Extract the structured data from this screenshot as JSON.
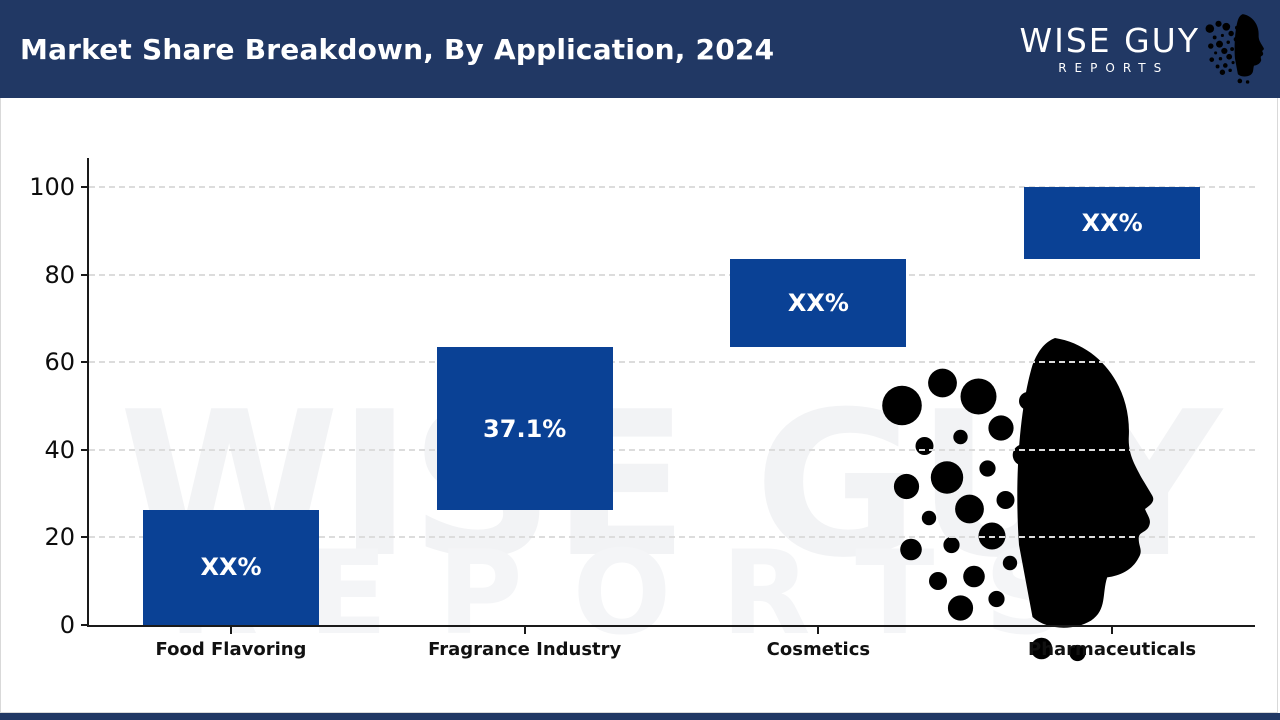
{
  "header": {
    "title": "Market Share Breakdown, By Application, 2024",
    "logo": {
      "line1": "WISE GUY",
      "line2": "REPORTS"
    }
  },
  "watermark": {
    "line1": "WISE GUY",
    "line2": "REPORTS"
  },
  "colors": {
    "header_bg": "#213864",
    "footer_bg": "#213864",
    "bar_fill": "#0a4195",
    "bar_label": "#ffffff",
    "gridline": "#dcdcdc",
    "axis": "#1a1a1a",
    "watermark": "#f2f3f5"
  },
  "chart_data": {
    "type": "bar",
    "subtype": "waterfall",
    "title": "Market Share Breakdown, By Application, 2024",
    "categories": [
      "Food Flavoring",
      "Fragrance Industry",
      "Cosmetics",
      "Pharmaceuticals"
    ],
    "values": [
      26.3,
      37.1,
      20.1,
      16.5
    ],
    "segment_start": [
      0,
      26.3,
      63.4,
      83.5
    ],
    "segment_end": [
      26.3,
      63.4,
      83.5,
      100
    ],
    "bar_labels": [
      "XX%",
      "37.1%",
      "XX%",
      "XX%"
    ],
    "ylim": [
      0,
      100
    ],
    "yticks": [
      0,
      20,
      40,
      60,
      80,
      100
    ],
    "ytick_labels": [
      "0",
      "20",
      "40",
      "60",
      "80",
      "100"
    ],
    "xlabel": "",
    "ylabel": "",
    "grid": "horizontal-dashed",
    "legend": "none"
  }
}
